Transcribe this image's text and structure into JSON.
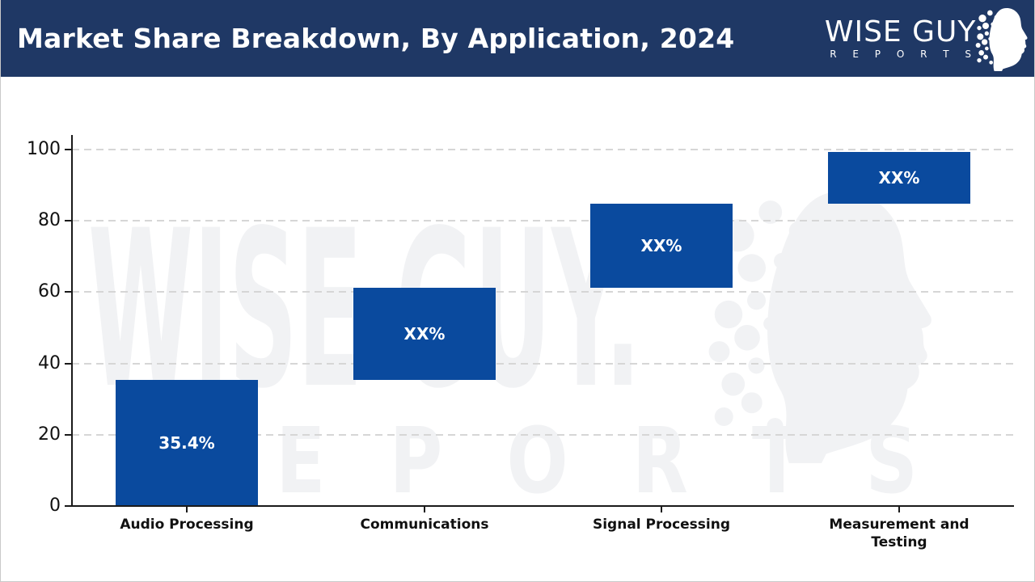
{
  "header": {
    "title": "Market Share Breakdown, By Application, 2024",
    "bg_color": "#1F3865",
    "logo": {
      "line1": "WISE GUY",
      "line2": "R E P O R T S"
    }
  },
  "watermark": {
    "line1": "WISE GUY.",
    "line2": "R E P O R T S"
  },
  "chart_data": {
    "type": "bar",
    "subtype": "waterfall-breakdown",
    "title": "Market Share Breakdown, By Application, 2024",
    "xlabel": "",
    "ylabel": "",
    "categories": [
      "Audio Processing",
      "Communications",
      "Signal Processing",
      "Measurement and Testing"
    ],
    "series": [
      {
        "name": "Market Share (%)",
        "segments": [
          {
            "category": "Audio Processing",
            "start": 0,
            "end": 35.4,
            "label": "35.4%"
          },
          {
            "category": "Communications",
            "start": 35.4,
            "end": 61.2,
            "label": "XX%"
          },
          {
            "category": "Signal Processing",
            "start": 61.2,
            "end": 84.8,
            "label": "XX%"
          },
          {
            "category": "Measurement and Testing",
            "start": 84.8,
            "end": 99.4,
            "label": "XX%"
          }
        ]
      }
    ],
    "yticks": [
      0,
      20,
      40,
      60,
      80,
      100
    ],
    "ylim": [
      0,
      105
    ],
    "grid": "horizontal-dashed",
    "legend_position": "none",
    "bar_color": "#0A4A9E",
    "value_label_color": "#FFFFFF",
    "grid_color": "#D6D6D6",
    "axis_color": "#1A1A1A"
  }
}
